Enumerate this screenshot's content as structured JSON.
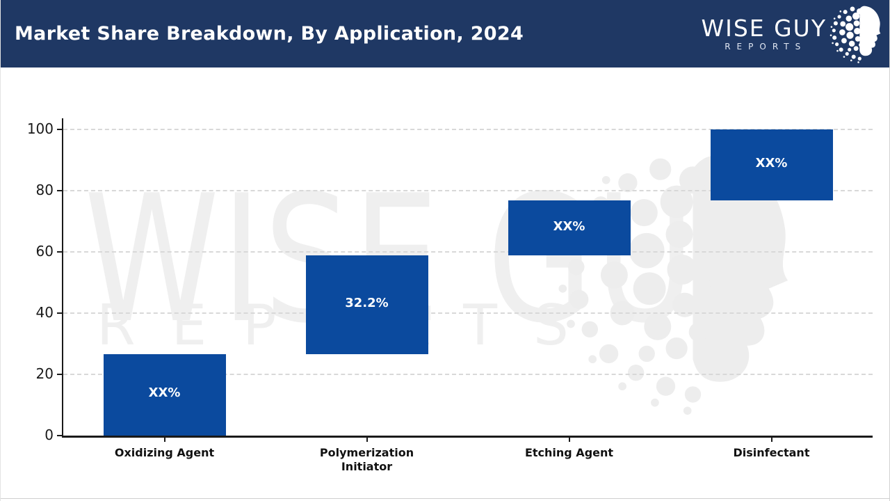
{
  "header": {
    "title": "Market Share Breakdown, By Application, 2024",
    "bg_color": "#1f3864",
    "logo": {
      "wordmark": "WISE GUY",
      "subtitle": "REPORTS"
    }
  },
  "watermark": {
    "line1": "WISE GUY",
    "line2": "REPORTS"
  },
  "chart_data": {
    "type": "bar",
    "subtype": "waterfall",
    "title": "Market Share Breakdown, By Application, 2024",
    "xlabel": "",
    "ylabel": "",
    "ylim": [
      0,
      104
    ],
    "yticks": [
      0,
      20,
      40,
      60,
      80,
      100
    ],
    "grid": true,
    "legend": false,
    "bar_color": "#0b4a9e",
    "value_label_color": "#ffffff",
    "categories": [
      {
        "label": "Oxidizing Agent",
        "lines": [
          "Oxidizing Agent"
        ]
      },
      {
        "label": "Polymerization Initiator",
        "lines": [
          "Polymerization",
          "Initiator"
        ]
      },
      {
        "label": "Etching Agent",
        "lines": [
          "Etching Agent"
        ]
      },
      {
        "label": "Disinfectant",
        "lines": [
          "Disinfectant"
        ]
      }
    ],
    "segments": [
      {
        "category": "Oxidizing Agent",
        "start": 0,
        "end": 26.6,
        "label": "XX%"
      },
      {
        "category": "Polymerization Initiator",
        "start": 26.6,
        "end": 58.8,
        "label": "32.2%"
      },
      {
        "category": "Etching Agent",
        "start": 58.8,
        "end": 76.8,
        "label": "XX%"
      },
      {
        "category": "Disinfectant",
        "start": 76.8,
        "end": 100,
        "label": "XX%"
      }
    ]
  }
}
